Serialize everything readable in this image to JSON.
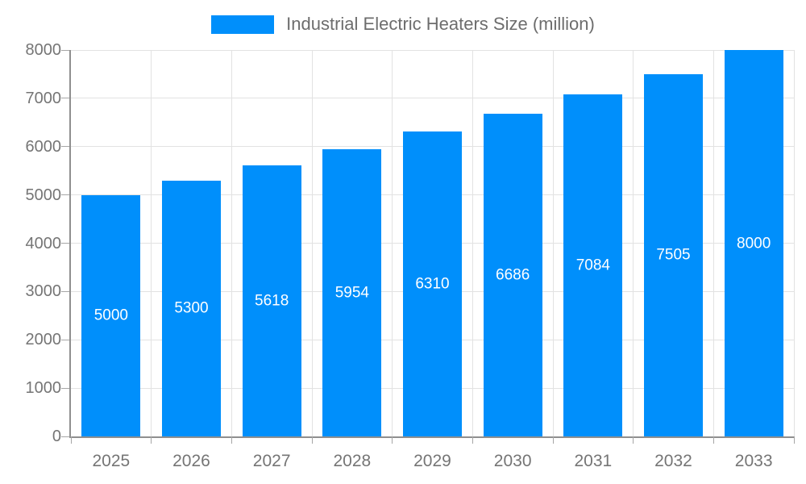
{
  "chart_data": {
    "type": "bar",
    "title": "Industrial Electric Heaters Size (million)",
    "categories": [
      "2025",
      "2026",
      "2027",
      "2028",
      "2029",
      "2030",
      "2031",
      "2032",
      "2033"
    ],
    "values": [
      5000,
      5300,
      5618,
      5954,
      6310,
      6686,
      7084,
      7505,
      8000
    ],
    "xlabel": "",
    "ylabel": "",
    "ylim": [
      0,
      8000
    ],
    "ytick_step": 1000,
    "ytick_labels": [
      "0",
      "1000",
      "2000",
      "3000",
      "4000",
      "5000",
      "6000",
      "7000",
      "8000"
    ],
    "grid": "horizontal-and-vertical",
    "legend_position": "top-center",
    "legend_label": "Industrial Electric Heaters Size (million)",
    "colors": {
      "bar": "#008FFB",
      "value_label": "#ffffff",
      "axis_line": "#8f8f8f",
      "gridline": "#e2e2e2",
      "axis_text": "#757575",
      "legend_text": "#6d6d6d"
    }
  }
}
